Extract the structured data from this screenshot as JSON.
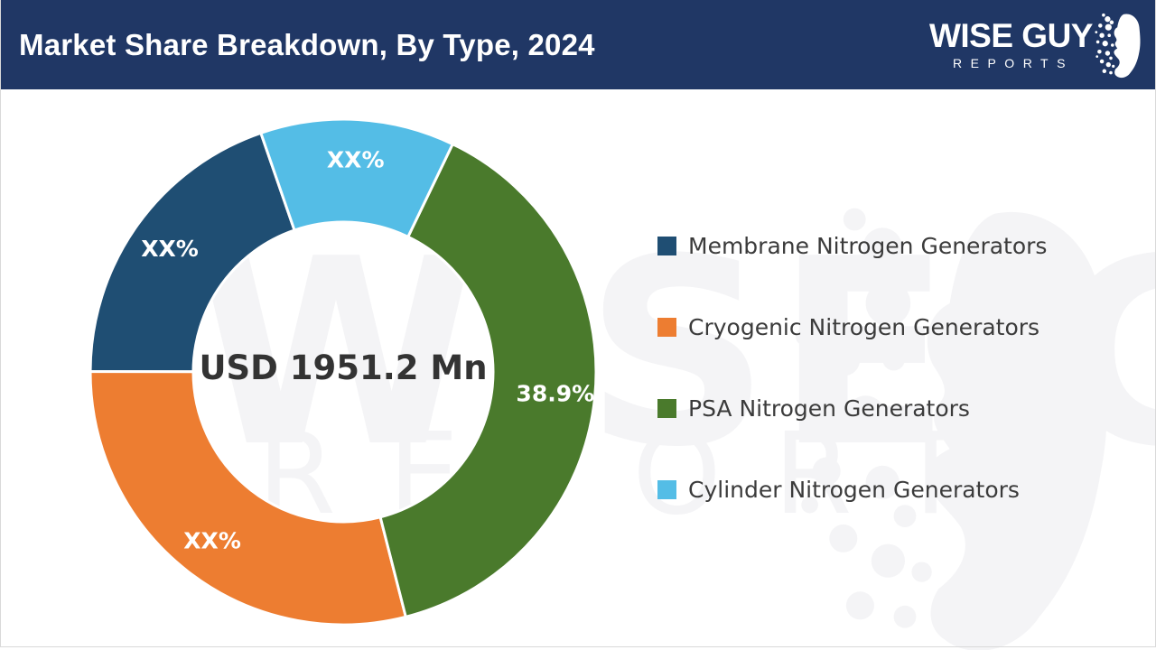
{
  "header": {
    "title": "Market Share Breakdown, By Type, 2024",
    "bg_color": "#203765",
    "logo": {
      "line1": "WISE GUY",
      "line2": "REPORTS"
    }
  },
  "watermark": {
    "line1": "WISE GUY",
    "line2": "REPORTS"
  },
  "chart_data": {
    "type": "donut",
    "title": "Market Share Breakdown, By Type, 2024",
    "center_label": "USD 1951.2 Mn",
    "start_angle_deg": 341,
    "direction": "counterclockwise",
    "outer_radius_px": 280,
    "inner_radius_px": 166,
    "segments": [
      {
        "label": "Membrane Nitrogen Generators",
        "display_value": "XX%",
        "share_pct": 19.7,
        "color": "#1f4e73"
      },
      {
        "label": "Cryogenic Nitrogen Generators",
        "display_value": "XX%",
        "share_pct": 29.0,
        "color": "#ed7d31"
      },
      {
        "label": "PSA Nitrogen Generators",
        "display_value": "38.9%",
        "share_pct": 38.9,
        "color": "#4a7a2c"
      },
      {
        "label": "Cylinder Nitrogen Generators",
        "display_value": "XX%",
        "share_pct": 12.4,
        "color": "#54bde6"
      }
    ],
    "legend_position": "right"
  },
  "page": {
    "background": "#ffffff",
    "border_color": "#d9d9d9"
  }
}
